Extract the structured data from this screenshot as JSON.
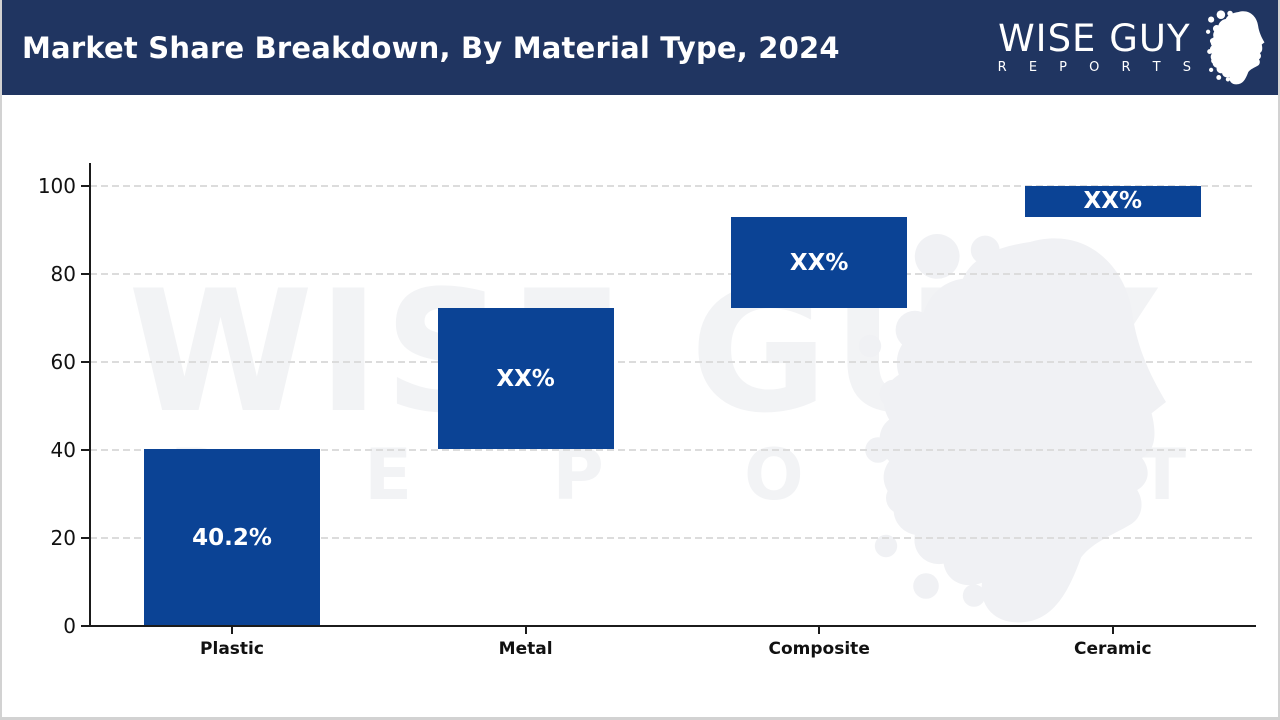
{
  "header": {
    "title": "Market Share Breakdown, By Material Type, 2024",
    "logo": {
      "line1": "WISE GUY",
      "line2": "R E P O R T S"
    }
  },
  "watermark": {
    "line1": "WISE GU Y",
    "line2": "R E P O R T S"
  },
  "colors": {
    "header_bg": "#203561",
    "bar": "#0b4395",
    "bar_label": "#ffffff",
    "axis": "#1b1b1b",
    "grid": "#dcdcdc",
    "tick_label": "#111111",
    "watermark": "#f2f3f5",
    "page_border": "#d2d2d2"
  },
  "chart_data": {
    "type": "bar",
    "subtype": "waterfall",
    "title": "Market Share Breakdown, By Material Type, 2024",
    "categories": [
      "Plastic",
      "Metal",
      "Composite",
      "Ceramic"
    ],
    "segments": [
      {
        "category": "Plastic",
        "start": 0,
        "end": 40.2,
        "label": "40.2%"
      },
      {
        "category": "Metal",
        "start": 40.2,
        "end": 72.2,
        "label": "XX%"
      },
      {
        "category": "Composite",
        "start": 72.2,
        "end": 93.0,
        "label": "XX%"
      },
      {
        "category": "Ceramic",
        "start": 93.0,
        "end": 100.0,
        "label": "XX%"
      }
    ],
    "xlabel": "",
    "ylabel": "",
    "ylim": [
      0,
      100
    ],
    "yticks": [
      0,
      20,
      40,
      60,
      80,
      100
    ],
    "grid": "horizontal-dashed",
    "legend": "none"
  }
}
